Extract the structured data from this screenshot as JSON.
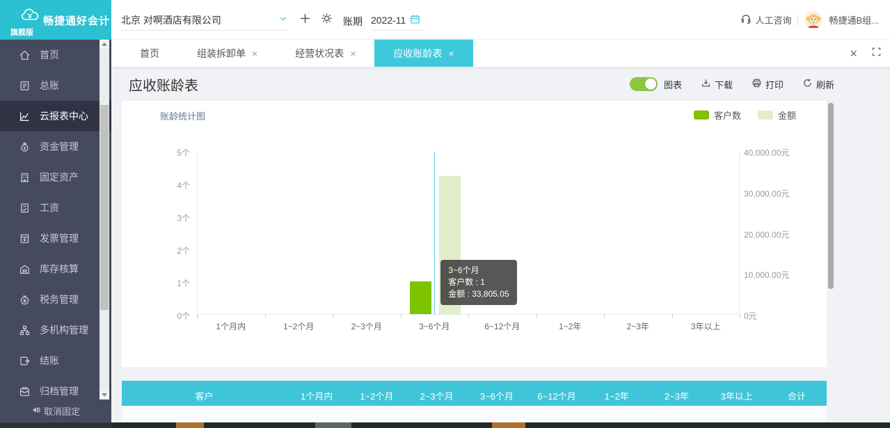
{
  "brand": {
    "name": "畅捷通好会计",
    "edition": "旗舰版"
  },
  "topbar": {
    "company": "北京 对啊酒店有限公司",
    "period_label": "账期",
    "period_value": "2022-11",
    "support_label": "人工咨询",
    "user_name": "畅捷通B组..."
  },
  "sidebar": {
    "items": [
      {
        "key": "home",
        "label": "首页",
        "icon": "home-icon",
        "active": false
      },
      {
        "key": "ledger",
        "label": "总账",
        "icon": "ledger-icon",
        "active": false
      },
      {
        "key": "cloud-report",
        "label": "云报表中心",
        "icon": "cloud-report-icon",
        "active": true
      },
      {
        "key": "funds",
        "label": "资金管理",
        "icon": "funds-icon",
        "active": false
      },
      {
        "key": "fixed-assets",
        "label": "固定资产",
        "icon": "fixed-assets-icon",
        "active": false
      },
      {
        "key": "payroll",
        "label": "工资",
        "icon": "payroll-icon",
        "active": false
      },
      {
        "key": "invoice",
        "label": "发票管理",
        "icon": "invoice-icon",
        "active": false
      },
      {
        "key": "inventory",
        "label": "库存核算",
        "icon": "inventory-icon",
        "active": false
      },
      {
        "key": "tax",
        "label": "税务管理",
        "icon": "tax-icon",
        "active": false
      },
      {
        "key": "multi-org",
        "label": "多机构管理",
        "icon": "multi-org-icon",
        "active": false
      },
      {
        "key": "closing",
        "label": "结账",
        "icon": "closing-icon",
        "active": false
      },
      {
        "key": "archive",
        "label": "归档管理",
        "icon": "archive-icon",
        "active": false
      }
    ],
    "unpin_label": "取消固定"
  },
  "tabs": [
    {
      "key": "home",
      "label": "首页",
      "closable": false,
      "active": false
    },
    {
      "key": "assembly",
      "label": "组装拆卸单",
      "closable": true,
      "active": false
    },
    {
      "key": "operating-status",
      "label": "经营状况表",
      "closable": true,
      "active": false
    },
    {
      "key": "ar-aging",
      "label": "应收账龄表",
      "closable": true,
      "active": true
    }
  ],
  "page": {
    "title": "应收账龄表",
    "chart_toggle_label": "图表",
    "download_label": "下载",
    "print_label": "打印",
    "refresh_label": "刷新"
  },
  "chart_data": {
    "type": "bar",
    "title": "账龄统计图",
    "categories": [
      "1个月内",
      "1~2个月",
      "2~3个月",
      "3~6个月",
      "6~12个月",
      "1~2年",
      "2~3年",
      "3年以上"
    ],
    "series": [
      {
        "name": "客户数",
        "axis": "left",
        "color": "#7ec300",
        "values": [
          0,
          0,
          0,
          1,
          0,
          0,
          0,
          0
        ]
      },
      {
        "name": "金额",
        "axis": "right",
        "color": "#e0efc8",
        "values": [
          0,
          0,
          0,
          33805.05,
          0,
          0,
          0,
          0
        ]
      }
    ],
    "left_axis": {
      "max": 5,
      "ticks": [
        "0个",
        "1个",
        "2个",
        "3个",
        "4个",
        "5个"
      ]
    },
    "right_axis": {
      "max": 40000,
      "ticks": [
        "0元",
        "10,000.00元",
        "20,000.00元",
        "30,000.00元",
        "40,000.00元"
      ]
    },
    "legend_position": "top-right",
    "grid": false,
    "highlight_index": 3,
    "tooltip": {
      "title": "3~6个月",
      "lines": [
        "客户数 : 1",
        "金额 : 33,805.05"
      ]
    }
  },
  "table": {
    "headers": [
      "客户",
      "1个月内",
      "1~2个月",
      "2~3个月",
      "3~6个月",
      "6~12个月",
      "1~2年",
      "2~3年",
      "3年以上",
      "合计"
    ]
  },
  "colors": {
    "brand_cyan": "#2bc0d2",
    "tab_active": "#3ec8dc",
    "table_header": "#3ec6d8",
    "toggle_on": "#8cc63f",
    "series_customer": "#7ec300",
    "series_amount": "#e0efc8",
    "sidebar_bg": "#464a5e",
    "sidebar_active_bg": "#2f3343",
    "crosshair": "#58cbe9"
  }
}
